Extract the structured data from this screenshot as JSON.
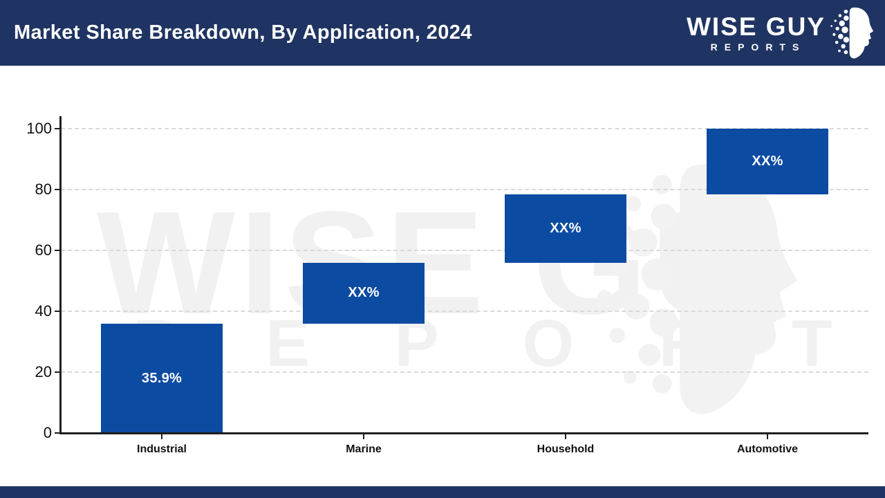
{
  "header": {
    "title": "Market Share Breakdown, By Application, 2024",
    "logo": {
      "line1": "WISE GUY",
      "line2": "REPORTS"
    }
  },
  "watermark": {
    "line1": "WISE GU",
    "line2": "R E P O R T S"
  },
  "chart_data": {
    "type": "bar",
    "variant": "waterfall-floating-bars",
    "title": "Market Share Breakdown, By Application, 2024",
    "categories": [
      "Industrial",
      "Marine",
      "Household",
      "Automotive"
    ],
    "segments": [
      {
        "category": "Industrial",
        "start": 0,
        "end": 35.9,
        "label": "35.9%"
      },
      {
        "category": "Marine",
        "start": 35.9,
        "end": 56,
        "label": "XX%"
      },
      {
        "category": "Household",
        "start": 56,
        "end": 78.5,
        "label": "XX%"
      },
      {
        "category": "Automotive",
        "start": 78.5,
        "end": 100,
        "label": "XX%"
      }
    ],
    "xlabel": "",
    "ylabel": "",
    "ylim": [
      0,
      100
    ],
    "yticks": [
      0,
      20,
      40,
      60,
      80,
      100
    ],
    "grid": "horizontal-dashed",
    "legend": "none"
  },
  "colors": {
    "header_bg": "#1f3462",
    "footer_bg": "#1f3462",
    "bar": "#0c4ba2",
    "bar_label": "#ffffff",
    "grid": "#d9d9d9",
    "axis": "#1f1f1f",
    "tick_text": "#111111",
    "watermark": "#f1f1f2"
  }
}
